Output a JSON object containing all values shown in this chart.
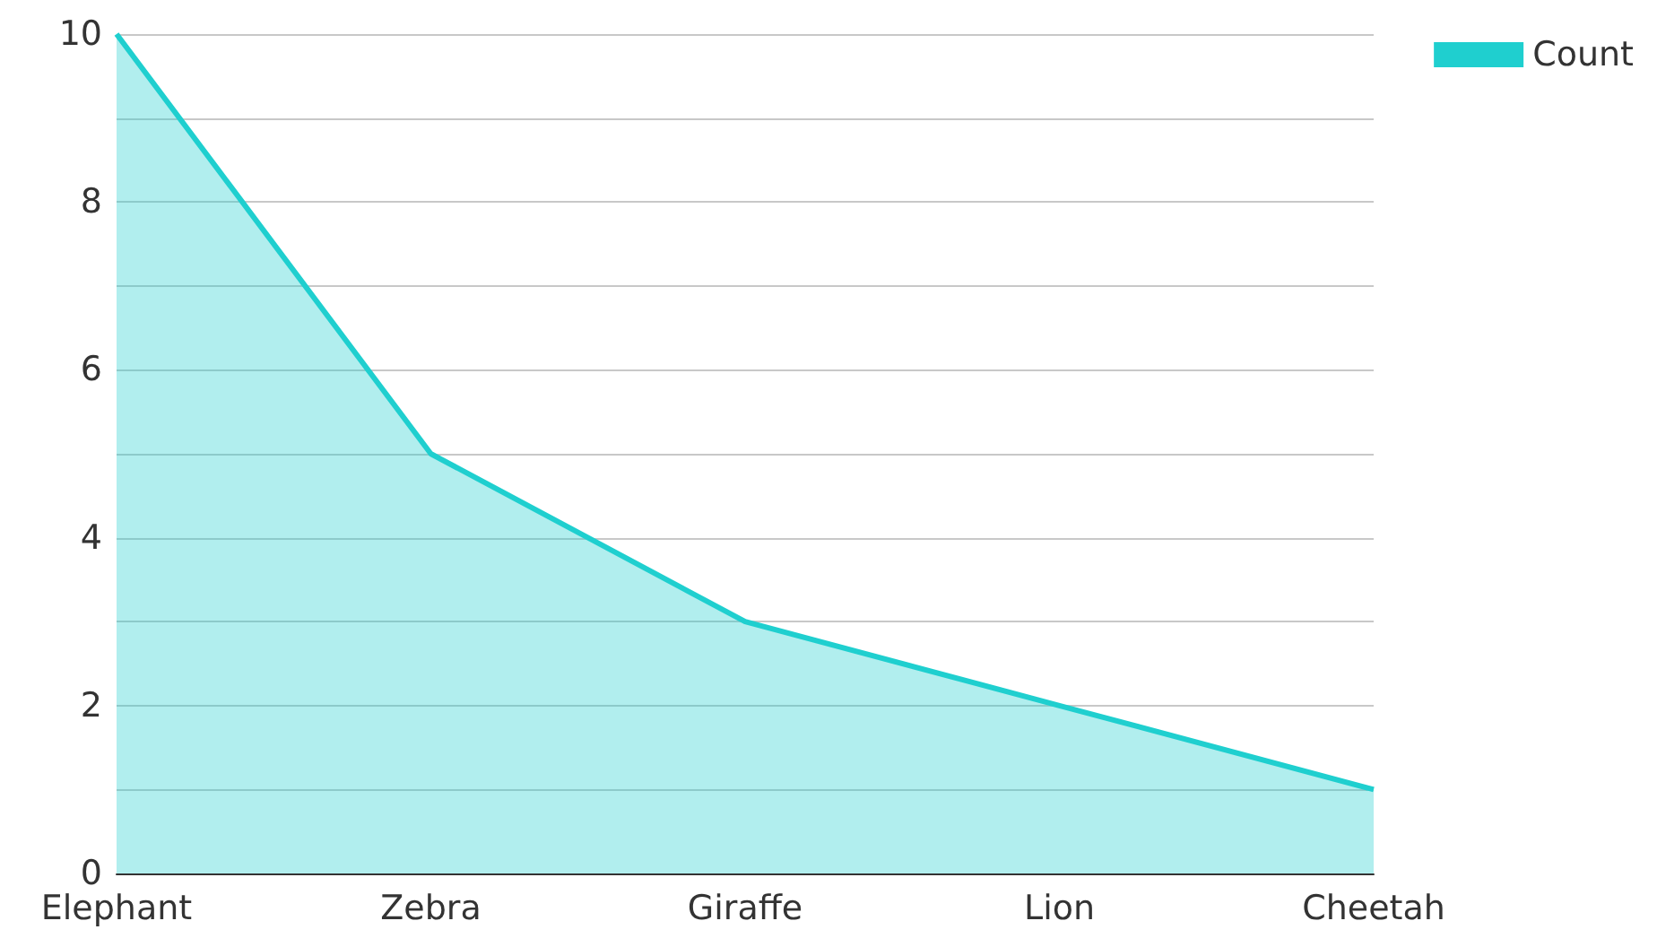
{
  "chart_data": {
    "type": "area",
    "categories": [
      "Elephant",
      "Zebra",
      "Giraffe",
      "Lion",
      "Cheetah"
    ],
    "series": [
      {
        "name": "Count",
        "color": "#1fcfcf",
        "values": [
          10,
          5,
          3,
          2,
          1
        ]
      }
    ],
    "ylim": [
      0,
      10
    ],
    "yticks": [
      0,
      {
        "value": 1,
        "label": null
      },
      2,
      {
        "value": 3,
        "label": null
      },
      4,
      {
        "value": 5,
        "label": null
      },
      6,
      {
        "value": 7,
        "label": null
      },
      8,
      {
        "value": 9,
        "label": null
      },
      10
    ],
    "grid": "y",
    "legend": "top right"
  }
}
